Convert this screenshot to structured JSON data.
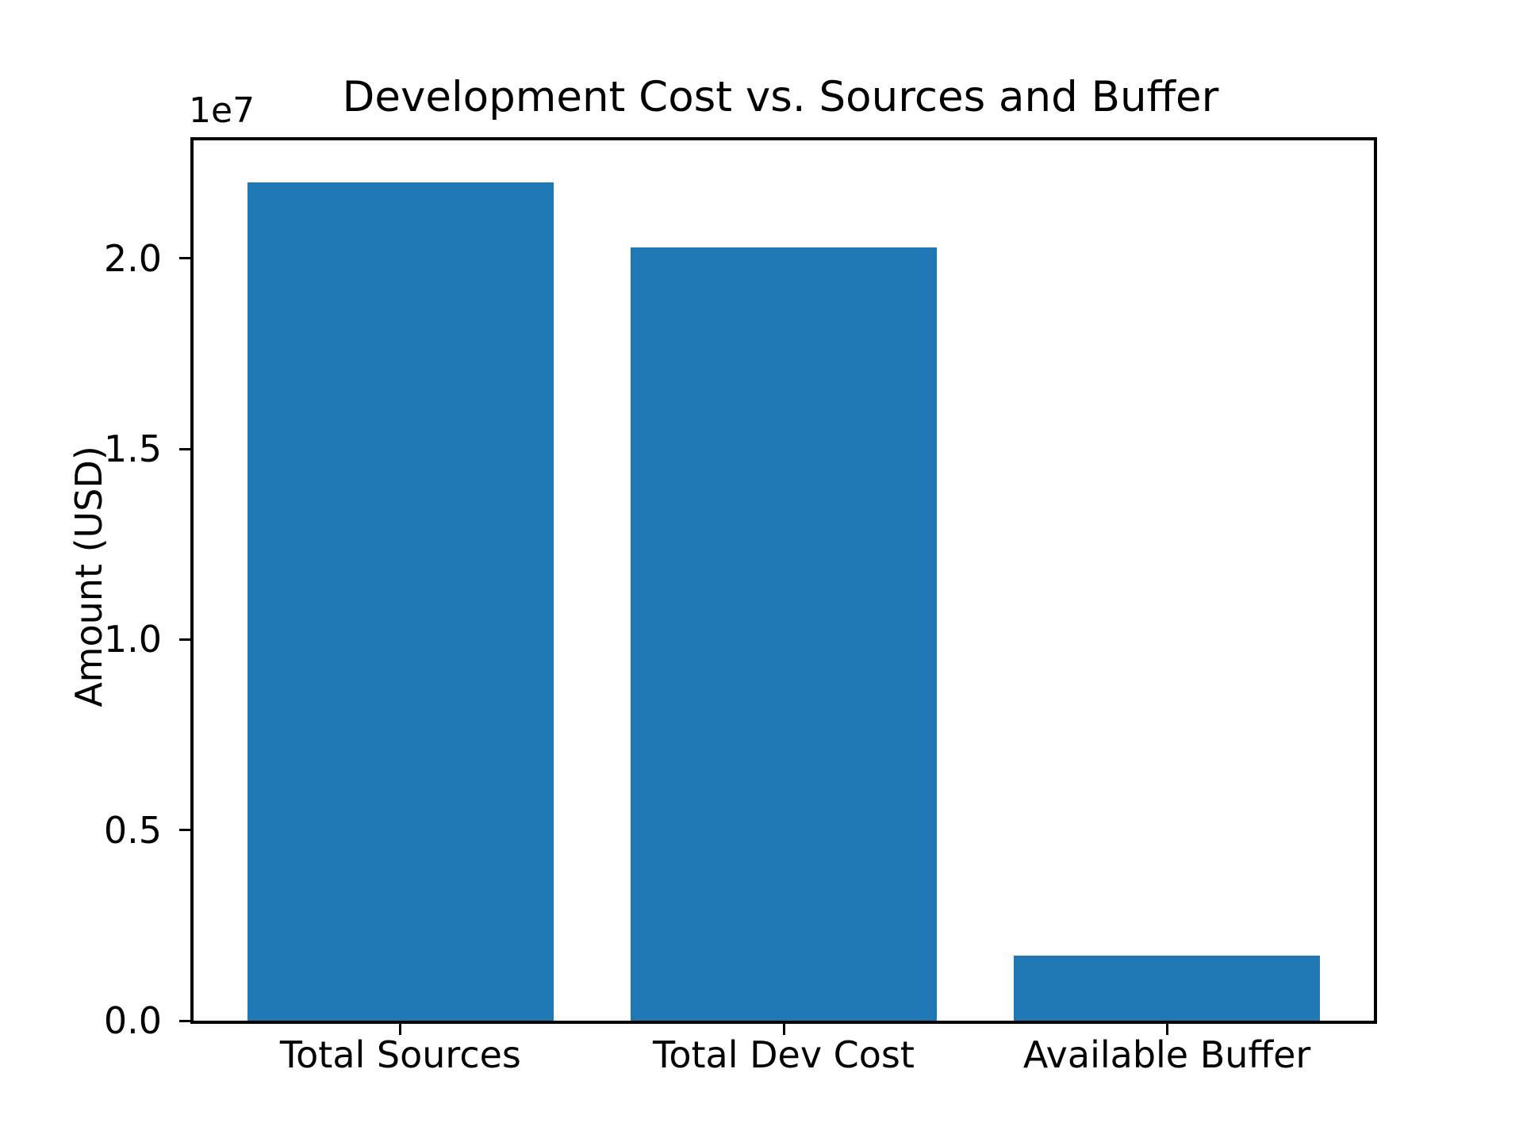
{
  "chart_data": {
    "type": "bar",
    "title": "Development Cost vs. Sources and Buffer",
    "xlabel": "",
    "ylabel": "Amount (USD)",
    "offset_text": "1e7",
    "categories": [
      "Total Sources",
      "Total Dev Cost",
      "Available Buffer"
    ],
    "values": [
      22000000,
      20300000,
      1700000
    ],
    "ylim": [
      0,
      23100000
    ],
    "yticks": [
      0,
      5000000,
      10000000,
      15000000,
      20000000
    ],
    "ytick_labels": [
      "0.0",
      "0.5",
      "1.0",
      "1.5",
      "2.0"
    ],
    "bar_width_fraction": 0.8,
    "bar_color": "#1f77b4",
    "axis_color": "#000000",
    "background_color": "#ffffff",
    "grid": false,
    "legend_position": "none"
  }
}
